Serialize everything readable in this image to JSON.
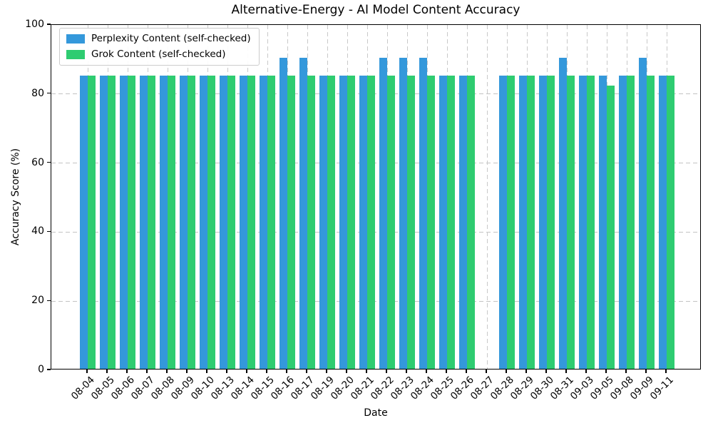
{
  "chart_data": {
    "type": "bar",
    "title": "Alternative-Energy - AI Model Content Accuracy",
    "xlabel": "Date",
    "ylabel": "Accuracy Score (%)",
    "ylim": [
      0,
      100
    ],
    "yticks": [
      0,
      20,
      40,
      60,
      80,
      100
    ],
    "grid": true,
    "grid_style": "dashed",
    "legend_position": "upper-left",
    "bar_layout": "grouped",
    "categories": [
      "08-04",
      "08-05",
      "08-06",
      "08-07",
      "08-08",
      "08-09",
      "08-10",
      "08-13",
      "08-14",
      "08-15",
      "08-16",
      "08-17",
      "08-19",
      "08-20",
      "08-21",
      "08-22",
      "08-23",
      "08-24",
      "08-25",
      "08-26",
      "08-27",
      "08-28",
      "08-29",
      "08-30",
      "08-31",
      "09-03",
      "09-05",
      "09-08",
      "09-09",
      "09-11"
    ],
    "series": [
      {
        "name": "Perplexity Content (self-checked)",
        "color": "#3498db",
        "values": [
          85,
          85,
          85,
          85,
          85,
          85,
          85,
          85,
          85,
          85,
          90,
          90,
          85,
          85,
          85,
          90,
          90,
          90,
          85,
          85,
          null,
          85,
          85,
          85,
          90,
          85,
          85,
          85,
          90,
          85
        ]
      },
      {
        "name": "Grok Content (self-checked)",
        "color": "#2ecc71",
        "values": [
          85,
          85,
          85,
          85,
          85,
          85,
          85,
          85,
          85,
          85,
          85,
          85,
          85,
          85,
          85,
          85,
          85,
          85,
          85,
          85,
          null,
          85,
          85,
          85,
          85,
          85,
          82,
          85,
          85,
          85
        ]
      }
    ]
  }
}
